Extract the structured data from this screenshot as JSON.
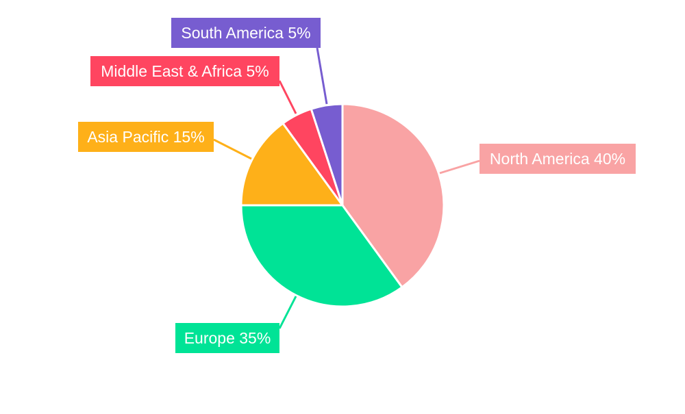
{
  "chart_data": {
    "type": "pie",
    "title": "",
    "start_angle": "top, clockwise",
    "slices": [
      {
        "label": "North America",
        "value": 40,
        "text": "North America 40%",
        "color": "#F9A3A4"
      },
      {
        "label": "Europe",
        "value": 35,
        "text": "Europe 35%",
        "color": "#00E396"
      },
      {
        "label": "Asia Pacific",
        "value": 15,
        "text": "Asia Pacific 15%",
        "color": "#FEB019"
      },
      {
        "label": "Middle East & Africa",
        "value": 5,
        "text": "Middle East & Africa 5%",
        "color": "#FF4560"
      },
      {
        "label": "South America",
        "value": 5,
        "text": "South America 5%",
        "color": "#775DD0"
      }
    ],
    "legend": "none",
    "labels": "outside boxes with leader lines"
  }
}
